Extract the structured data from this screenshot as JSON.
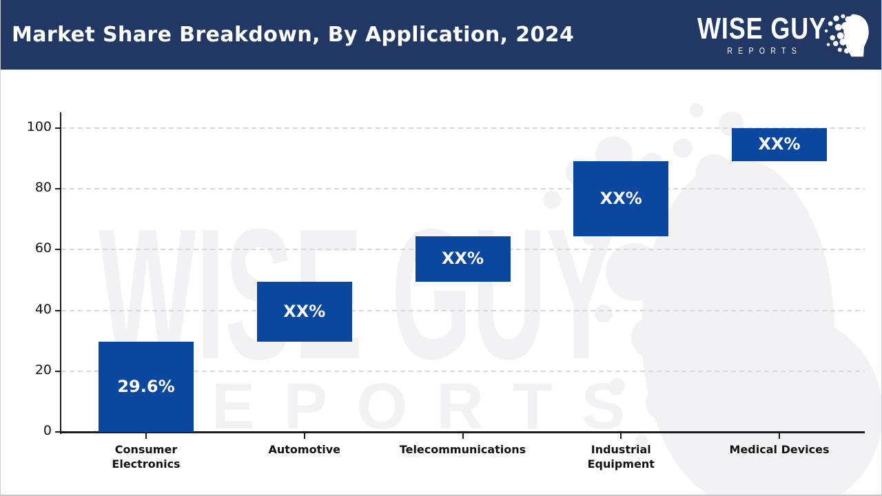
{
  "header": {
    "title": "Market Share Breakdown, By Application, 2024",
    "logo": {
      "line1": "WISE GUY",
      "line2": "REPORTS"
    }
  },
  "watermark": {
    "line1": "WISE GUY",
    "line2": "REPORTS"
  },
  "colors": {
    "header_bg": "#223864",
    "bar_blue": "#0a479e",
    "bar_label_text": "#ffffff",
    "grid_line": "#d8d8d8",
    "axis_line": "#1a1a1a",
    "tick_label": "#111111",
    "watermark_gray": "#f2f2f4",
    "page_border": "#c8c8c8"
  },
  "chart_data": {
    "type": "bar",
    "variant": "waterfall",
    "title": "Market Share Breakdown, By Application, 2024",
    "categories": [
      "Consumer Electronics",
      "Automotive",
      "Telecommunications",
      "Industrial Equipment",
      "Medical Devices"
    ],
    "segments": [
      {
        "category": "Consumer Electronics",
        "label_lines": [
          "Consumer",
          "Electronics"
        ],
        "start": 0,
        "end": 29.6,
        "delta": 29.6,
        "display_label": "29.6%"
      },
      {
        "category": "Automotive",
        "label_lines": [
          "Automotive"
        ],
        "start": 29.6,
        "end": 49.5,
        "delta": 19.9,
        "display_label": "XX%"
      },
      {
        "category": "Telecommunications",
        "label_lines": [
          "Telecommunications"
        ],
        "start": 49.5,
        "end": 64.3,
        "delta": 14.8,
        "display_label": "XX%"
      },
      {
        "category": "Industrial Equipment",
        "label_lines": [
          "Industrial",
          "Equipment"
        ],
        "start": 64.3,
        "end": 89.1,
        "delta": 24.8,
        "display_label": "XX%"
      },
      {
        "category": "Medical Devices",
        "label_lines": [
          "Medical Devices"
        ],
        "start": 89.1,
        "end": 100,
        "delta": 10.9,
        "display_label": "XX%"
      }
    ],
    "ylim": [
      0,
      100
    ],
    "yticks": [
      0,
      20,
      40,
      60,
      80,
      100
    ],
    "xlabel": "",
    "ylabel": "",
    "grid": "horizontal-dashed",
    "legend": "none"
  }
}
